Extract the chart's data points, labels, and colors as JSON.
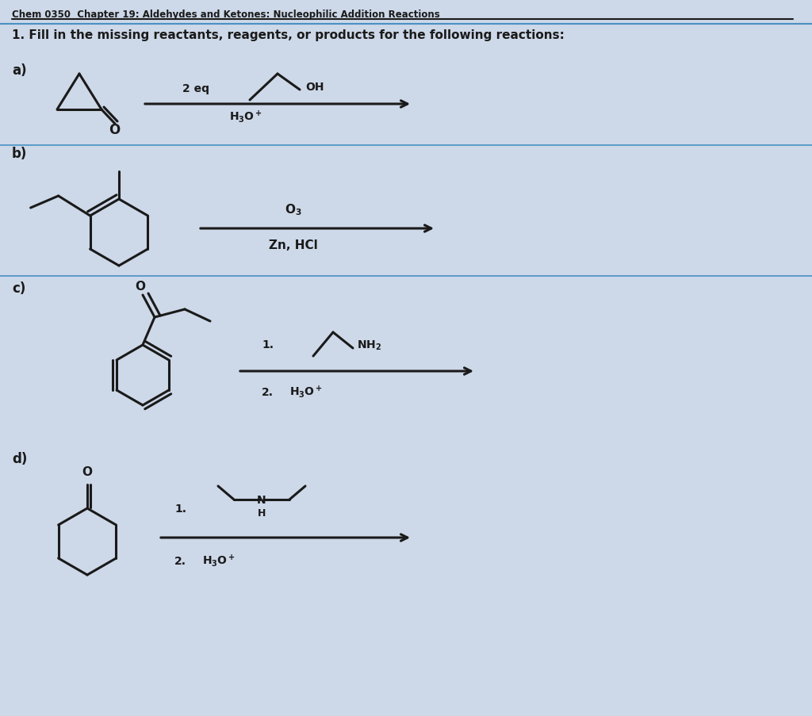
{
  "title_top": "Chem 0350  Chapter 19: Aldehydes and Ketones: Nucleophilic Addition Reactions",
  "question": "1. Fill in the missing reactants, reagents, or products for the following reactions:",
  "background_color": "#cdd8e8",
  "text_color": "#1a1a1a",
  "labels": [
    "a)",
    "b)",
    "c)",
    "d)"
  ],
  "reagents_a": [
    "2 eq",
    "OH",
    "H₃O⁺"
  ],
  "reagents_b": [
    "O₃",
    "Zn, HCl"
  ],
  "reagents_c": [
    "1.",
    "NH₂",
    "2.",
    "H₃O⁺"
  ],
  "reagents_d": [
    "1.",
    "H",
    "2.",
    "H₃O⁺"
  ]
}
